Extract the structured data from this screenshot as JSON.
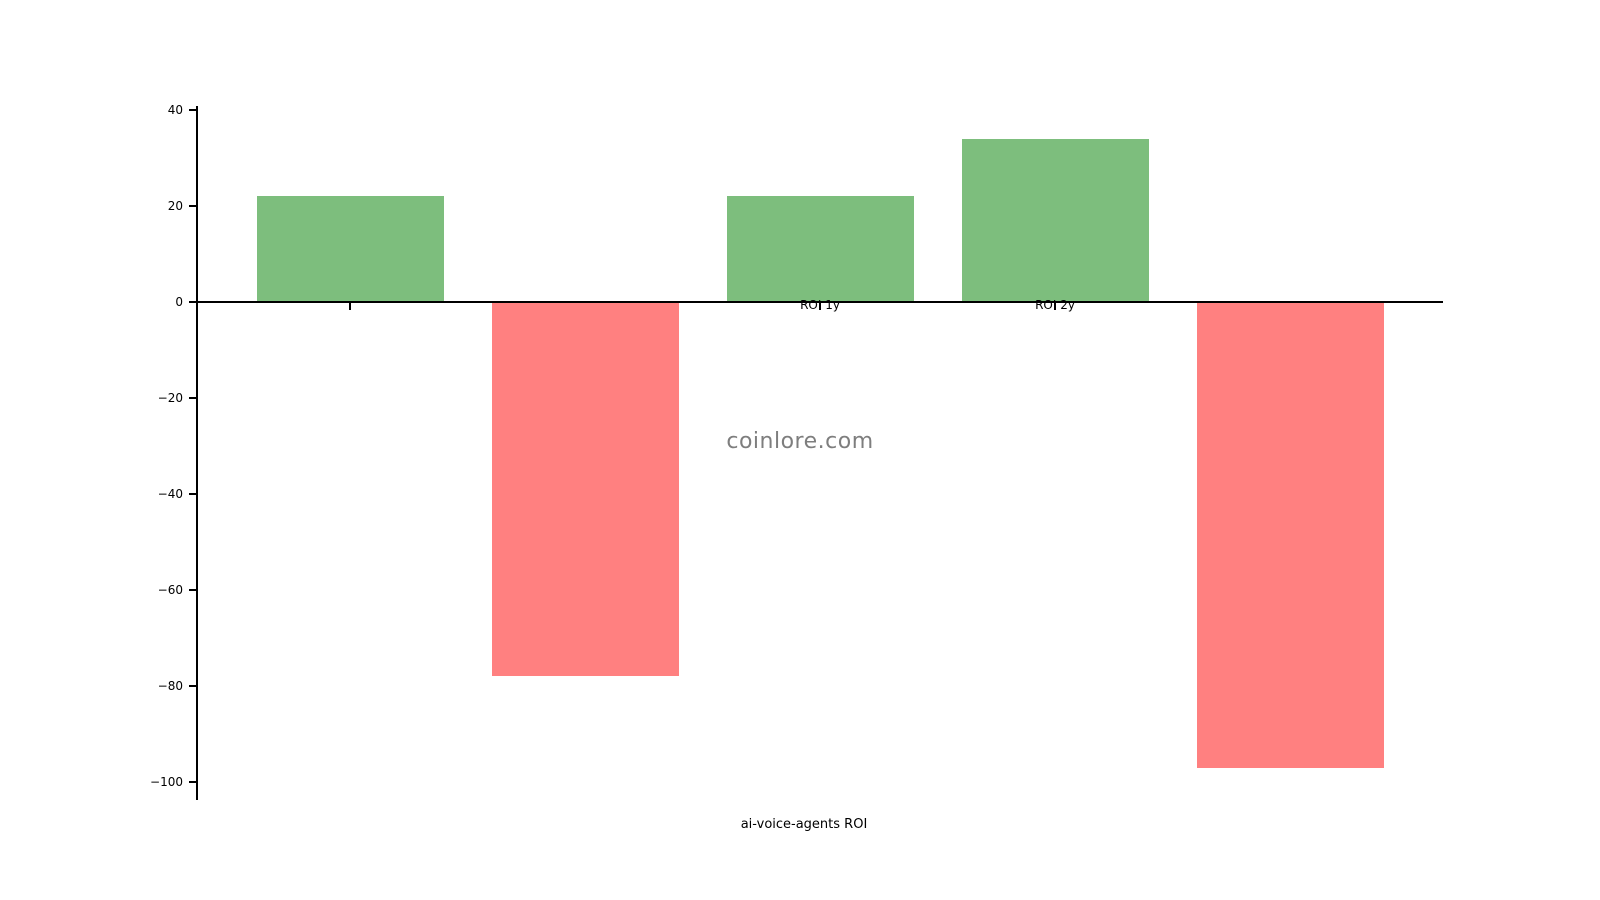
{
  "page": {
    "background": "#ffffff"
  },
  "chart_data": {
    "type": "bar",
    "title": "ai-voice-agents ROI",
    "watermark": "coinlore.com",
    "categories": [
      "",
      "",
      "ROI 1y",
      "ROI 2y",
      ""
    ],
    "values": [
      22,
      -78,
      22,
      34,
      -97
    ],
    "colors": {
      "positive": "#7dbe7d",
      "negative": "#ff8080"
    },
    "yticks": [
      40,
      20,
      0,
      -20,
      -40,
      -60,
      -80,
      -100
    ],
    "ylim": [
      -104,
      41
    ],
    "xticks": [
      {
        "index": 0,
        "label": ""
      },
      {
        "index": 2,
        "label": "ROI 1y"
      },
      {
        "index": 3,
        "label": "ROI 2y"
      }
    ],
    "grid": false,
    "legend": false,
    "axis_color": "#000000",
    "text_color": "#000000",
    "watermark_color": "#7e7e7e"
  }
}
